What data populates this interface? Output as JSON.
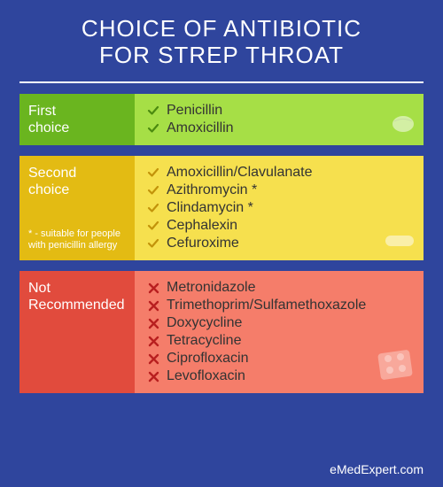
{
  "title_line1": "CHOICE OF ANTIBIOTIC",
  "title_line2": "FOR STREP THROAT",
  "background_color": "#2f459d",
  "sections": [
    {
      "label": "First\nchoice",
      "left_bg": "#6ab51f",
      "right_bg": "#a6df46",
      "text_color": "#333333",
      "mark": "check",
      "mark_color": "#4b8a0f",
      "items": [
        "Penicillin",
        "Amoxicillin"
      ],
      "footnote": "",
      "pill": "round"
    },
    {
      "label": "Second\nchoice",
      "left_bg": "#e3bb13",
      "right_bg": "#f6e04e",
      "text_color": "#333333",
      "mark": "check",
      "mark_color": "#c2930a",
      "items": [
        "Amoxicillin/Clavulanate",
        "Azithromycin *",
        "Clindamycin *",
        "Cephalexin",
        "Cefuroxime"
      ],
      "footnote": "* - suitable for people with penicillin allergy",
      "pill": "capsule"
    },
    {
      "label": "Not\nRecommended",
      "left_bg": "#e14b3d",
      "right_bg": "#f57d6a",
      "text_color": "#333333",
      "mark": "cross",
      "mark_color": "#b81f1f",
      "items": [
        "Metronidazole",
        "Trimethoprim/Sulfamethoxazole",
        "Doxycycline",
        "Tetracycline",
        "Ciprofloxacin",
        "Levofloxacin"
      ],
      "footnote": "",
      "pill": "blister"
    }
  ],
  "footer": "eMedExpert.com"
}
